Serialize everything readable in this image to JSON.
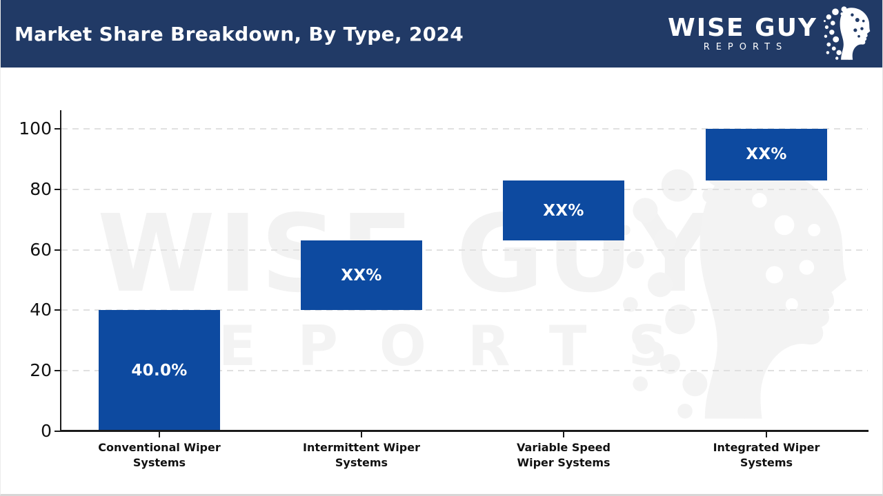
{
  "header": {
    "title": "Market Share Breakdown, By Type, 2024",
    "logo": {
      "name": "WISE GUY",
      "sub": "REPORTS"
    }
  },
  "watermark": {
    "name": "WISE GUY",
    "sub": "REPORTS"
  },
  "colors": {
    "header_bg": "#213A66",
    "bar_blue": "#0D4AA0",
    "gridline": "#e0e0e0",
    "axis": "#1a1a1a",
    "watermark_gray": "#f2f2f2"
  },
  "chart_data": {
    "type": "bar",
    "variant": "floating-waterfall",
    "title": "Market Share Breakdown, By Type, 2024",
    "xlabel": "",
    "ylabel": "",
    "legend": "none",
    "grid": "horizontal-dashed",
    "ylim": [
      0,
      105
    ],
    "yticks": [
      0,
      20,
      40,
      60,
      80,
      100
    ],
    "categories": [
      [
        "Conventional Wiper",
        "Systems"
      ],
      [
        "Intermittent Wiper",
        "Systems"
      ],
      [
        "Variable Speed",
        "Wiper Systems"
      ],
      [
        "Integrated Wiper",
        "Systems"
      ]
    ],
    "bars": [
      {
        "category": "Conventional Wiper Systems",
        "start": 0,
        "end": 40,
        "label": "40.0%"
      },
      {
        "category": "Intermittent Wiper Systems",
        "start": 40,
        "end": 63,
        "label": "XX%"
      },
      {
        "category": "Variable Speed Wiper Systems",
        "start": 63,
        "end": 83,
        "label": "XX%"
      },
      {
        "category": "Integrated Wiper Systems",
        "start": 83,
        "end": 100,
        "label": "XX%"
      }
    ],
    "bar_color": "#0D4AA0"
  }
}
